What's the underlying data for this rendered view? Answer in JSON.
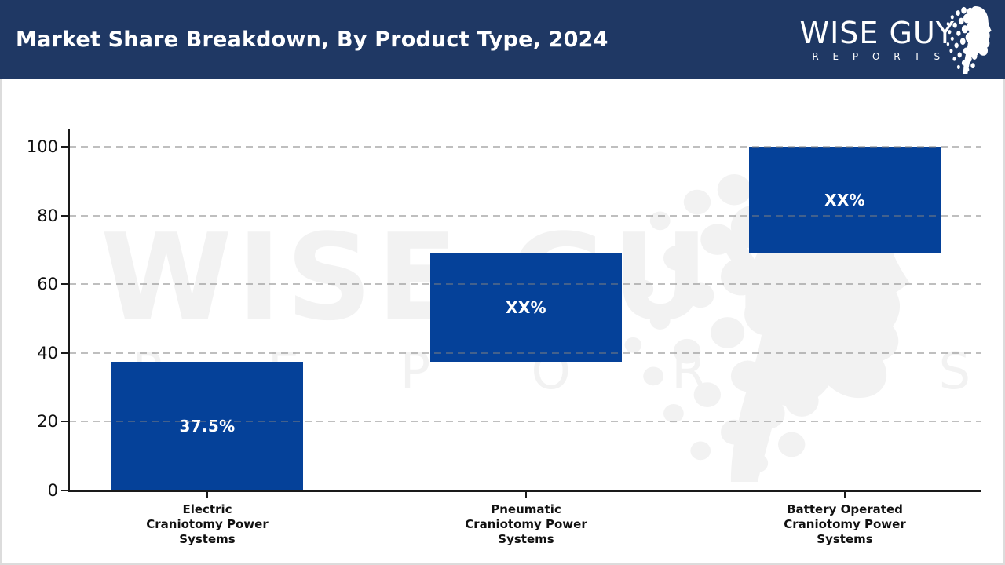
{
  "header": {
    "title": "Market Share Breakdown, By Product Type, 2024",
    "logo": {
      "name_line": "WISE GUY",
      "sub_line": "R E P O R T S"
    }
  },
  "watermark": {
    "name_line": "WISE GUY",
    "sub_line": "R E P O R T S"
  },
  "colors": {
    "header_bg": "#1f3864",
    "bar": "#054199",
    "bar_label": "#ffffff",
    "axis": "#1a1a1a",
    "gridline_gray": "#808080",
    "watermark": "#f2f2f2",
    "category_text": "#111111",
    "figure_border": "#dcdcdc"
  },
  "chart_data": {
    "type": "bar",
    "subtype": "floating-segment-bar",
    "title": "Market Share Breakdown, By Product Type, 2024",
    "categories": [
      [
        "Electric",
        "Craniotomy Power",
        "Systems"
      ],
      [
        "Pneumatic",
        "Craniotomy Power",
        "Systems"
      ],
      [
        "Battery Operated",
        "Craniotomy Power",
        "Systems"
      ]
    ],
    "segments": [
      {
        "start": 0,
        "end": 37.5,
        "label": "37.5%"
      },
      {
        "start": 37.5,
        "end": 69,
        "label": "XX%"
      },
      {
        "start": 69,
        "end": 100,
        "label": "XX%"
      }
    ],
    "yticks": [
      0,
      20,
      40,
      60,
      80,
      100
    ],
    "ylim": [
      0,
      105
    ],
    "grid": "dashed-horizontal",
    "legend": "none"
  }
}
